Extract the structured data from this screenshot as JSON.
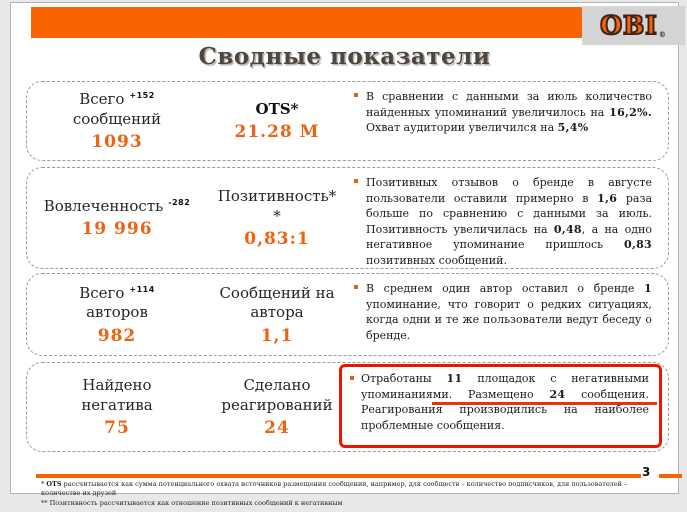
{
  "brand": {
    "logo_text": "OBI",
    "registered_mark": "®",
    "bar_color": "#F96302",
    "logo_bg": "#d4d4d4",
    "logo_color": "#F96302"
  },
  "title": "Сводные показатели",
  "accent_color": "#EE6211",
  "rows": [
    {
      "metrics": [
        {
          "label_lines": [
            "Всего",
            "сообщений"
          ],
          "delta": "+152",
          "value": "1093",
          "label_bold": false
        },
        {
          "label_lines": [
            "OTS*"
          ],
          "delta": "",
          "value": "21.28 М",
          "label_bold": true
        }
      ],
      "text": [
        {
          "t": "В сравнении с данными за июль количество найденных упоминаний увеличилось на "
        },
        {
          "t": "16,2%.",
          "b": true
        },
        {
          "t": " Охват аудитории увеличился на "
        },
        {
          "t": "5,4%",
          "b": true
        }
      ],
      "red_box": false
    },
    {
      "metrics": [
        {
          "label_lines": [
            "Вовлеченность"
          ],
          "delta": "-282",
          "value": "19 996",
          "label_bold": false
        },
        {
          "label_lines": [
            "Позитивность*",
            "*"
          ],
          "delta": "",
          "value": "0,83:1",
          "label_bold": false
        }
      ],
      "text": [
        {
          "t": "Позитивных отзывов о бренде в августе пользователи оставили примерно в "
        },
        {
          "t": "1,6",
          "b": true
        },
        {
          "t": " раза больше по сравнению с данными за июль. Позитивность увеличилась на "
        },
        {
          "t": "0,48",
          "b": true
        },
        {
          "t": ", а на одно негативное упоминание пришлось "
        },
        {
          "t": "0,83",
          "b": true
        },
        {
          "t": " позитивных сообщений."
        }
      ],
      "red_box": false
    },
    {
      "metrics": [
        {
          "label_lines": [
            "Всего",
            "авторов"
          ],
          "delta": "+114",
          "value": "982",
          "label_bold": false
        },
        {
          "label_lines": [
            "Сообщений на",
            "автора"
          ],
          "delta": "",
          "value": "1,1",
          "label_bold": false
        }
      ],
      "text": [
        {
          "t": "В среднем один автор оставил о бренде "
        },
        {
          "t": "1",
          "b": true
        },
        {
          "t": " упоминание, что говорит о редких ситуациях, когда одни и те же пользователи ведут беседу о бренде."
        }
      ],
      "red_box": false
    },
    {
      "metrics": [
        {
          "label_lines": [
            "Найдено",
            "негатива"
          ],
          "delta": "",
          "value": "75",
          "label_bold": false
        },
        {
          "label_lines": [
            "Сделано",
            "реагирований"
          ],
          "delta": "",
          "value": "24",
          "label_bold": false
        }
      ],
      "text": [
        {
          "t": "Отработаны "
        },
        {
          "t": "11",
          "b": true
        },
        {
          "t": " площадок с негативными упоминаниями. Размещено "
        },
        {
          "t": "24",
          "b": true
        },
        {
          "t": " сообщения. Реагирования производились на наиболее проблемные сообщения."
        }
      ],
      "red_box": true,
      "red_box_color": "#ED1500",
      "underlined_phrase": "24 сообщения."
    }
  ],
  "footer": {
    "page_number": "3",
    "line_color": "#F96302",
    "footnotes": [
      [
        {
          "t": "* "
        },
        {
          "t": "OTS",
          "b": true
        },
        {
          "t": " рассчитывается как сумма потенциального охвата источников размещения сообщения, например, для сообществ – количество подписчиков, для пользователей – количество их друзей"
        }
      ],
      [
        {
          "t": "** Позитивность рассчитывается как отношение позитивных сообщений к негативным"
        }
      ]
    ]
  }
}
